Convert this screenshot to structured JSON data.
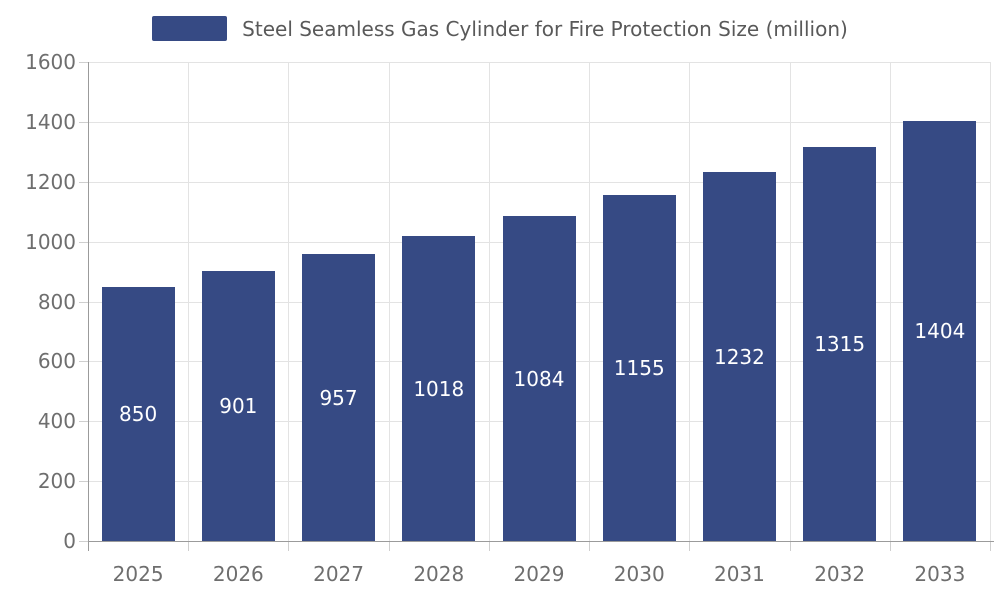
{
  "legend": {
    "label": "Steel Seamless Gas Cylinder for Fire Protection Size (million)"
  },
  "colors": {
    "bar": "#364a84",
    "legend_text": "#595959",
    "axis_label": "#6e6e6e",
    "grid_line": "#e3e3e3",
    "axis_line": "#9b9b9b",
    "tick_line": "#cfcfcf",
    "value_label": "#ffffff",
    "background": "#ffffff"
  },
  "chart_data": {
    "type": "bar",
    "title": "Steel Seamless Gas Cylinder for Fire Protection Size (million)",
    "categories": [
      "2025",
      "2026",
      "2027",
      "2028",
      "2029",
      "2030",
      "2031",
      "2032",
      "2033"
    ],
    "series": [
      {
        "name": "Steel Seamless Gas Cylinder for Fire Protection Size (million)",
        "values": [
          850,
          901,
          957,
          1018,
          1084,
          1155,
          1232,
          1315,
          1404
        ]
      }
    ],
    "xlabel": "",
    "ylabel": "",
    "ylim": [
      0,
      1600
    ],
    "ytick_step": 200,
    "yticks": [
      0,
      200,
      400,
      600,
      800,
      1000,
      1200,
      1400,
      1600
    ],
    "grid": true,
    "vertical_gridlines": true,
    "legend_position": "top-center",
    "value_labels": "inside-center"
  }
}
